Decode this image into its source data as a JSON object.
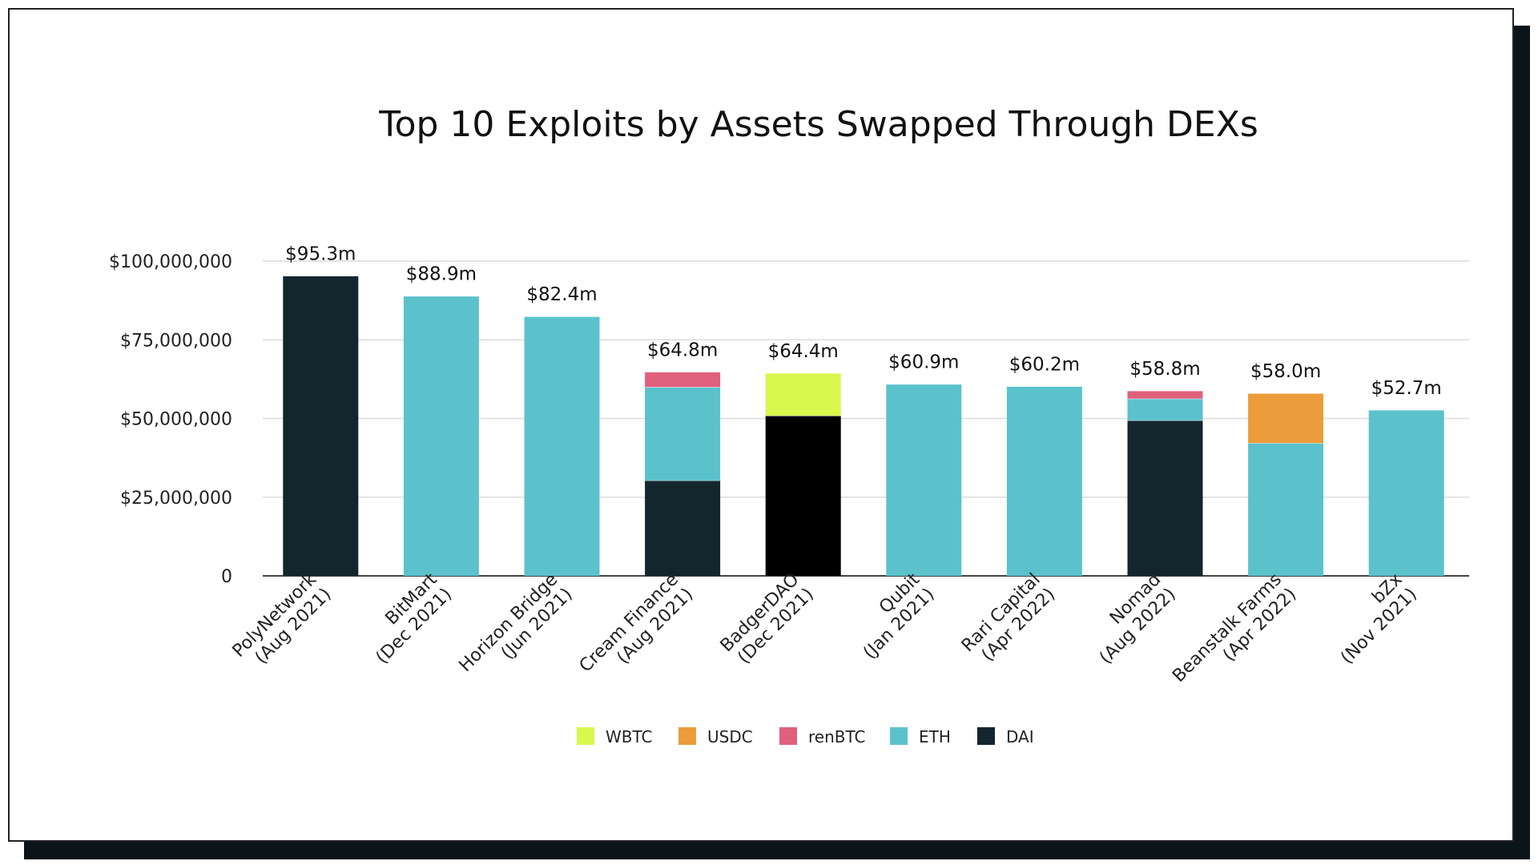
{
  "chart_data": {
    "type": "bar",
    "stacked": true,
    "title": "Top 10 Exploits by Assets Swapped Through DEXs",
    "xlabel": "",
    "ylabel": "",
    "ylim": [
      0,
      100000000
    ],
    "yticks": [
      0,
      25000000,
      50000000,
      75000000,
      100000000
    ],
    "ytick_labels": [
      "0",
      "$25,000,000",
      "$50,000,000",
      "$75,000,000",
      "$100,000,000"
    ],
    "grid": true,
    "legend_position": "bottom",
    "categories": [
      [
        "PolyNetwork",
        "(Aug 2021)"
      ],
      [
        "BitMart",
        "(Dec 2021)"
      ],
      [
        "Horizon Bridge",
        "(Jun 2021)"
      ],
      [
        "Cream Finance",
        "(Aug 2021)"
      ],
      [
        "BadgerDAO",
        "(Dec 2021)"
      ],
      [
        "Qubit",
        "(Jan 2021)"
      ],
      [
        "Rari Capital",
        "(Apr 2022)"
      ],
      [
        "Nomad",
        "(Aug 2022)"
      ],
      [
        "Beanstalk Farms",
        "(Apr 2022)"
      ],
      [
        "bZx",
        "(Nov 2021)"
      ]
    ],
    "totals_labels": [
      "$95.3m",
      "$88.9m",
      "$82.4m",
      "$64.8m",
      "$64.4m",
      "$60.9m",
      "$60.2m",
      "$58.8m",
      "$58.0m",
      "$52.7m"
    ],
    "series": [
      {
        "name": "DAI",
        "color": "#13262e",
        "values": [
          95300000,
          0,
          0,
          30300000,
          50900000,
          0,
          0,
          49400000,
          0,
          0
        ]
      },
      {
        "name": "ETH",
        "color": "#5bc2cc",
        "values": [
          0,
          88900000,
          82400000,
          29700000,
          0,
          60900000,
          60200000,
          6900000,
          42200000,
          52700000
        ]
      },
      {
        "name": "renBTC",
        "color": "#e0607e",
        "values": [
          0,
          0,
          0,
          4800000,
          0,
          0,
          0,
          2500000,
          0,
          0
        ]
      },
      {
        "name": "USDC",
        "color": "#ec9c3a",
        "values": [
          0,
          0,
          0,
          0,
          0,
          0,
          0,
          0,
          15800000,
          0
        ]
      },
      {
        "name": "WBTC",
        "color": "#d9f74c",
        "values": [
          0,
          0,
          0,
          0,
          13500000,
          0,
          0,
          0,
          0,
          0
        ]
      }
    ],
    "legend_order": [
      "WBTC",
      "USDC",
      "renBTC",
      "ETH",
      "DAI"
    ]
  }
}
